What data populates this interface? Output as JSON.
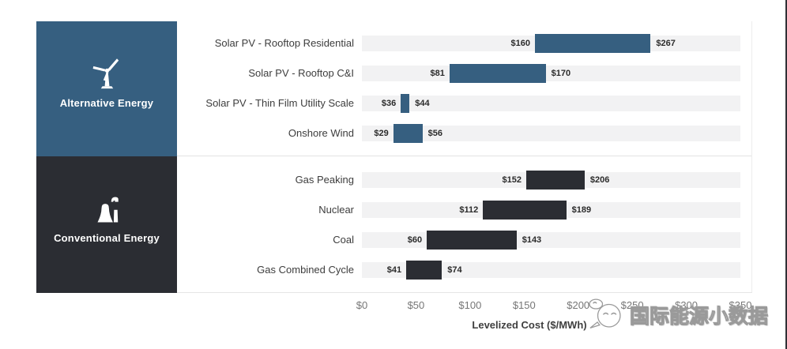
{
  "sidebar": {
    "sections": [
      {
        "label": "Alternative Energy",
        "icon": "wind-turbine-icon",
        "color": "#365f80"
      },
      {
        "label": "Conventional Energy",
        "icon": "power-plant-icon",
        "color": "#2b2d33"
      }
    ]
  },
  "chart_data": {
    "type": "bar",
    "subtype": "horizontal-range-bars",
    "xlabel": "Levelized Cost ($/MWh)",
    "xlim": [
      0,
      350
    ],
    "xticks": [
      "$0",
      "$50",
      "$100",
      "$150",
      "$200",
      "$250",
      "$300",
      "$350"
    ],
    "track_color": "#f2f2f3",
    "grid": false,
    "groups": [
      {
        "name": "Alternative Energy",
        "bar_color": "#365f80",
        "items": [
          {
            "label": "Solar PV - Rooftop Residential",
            "low": 160,
            "high": 267
          },
          {
            "label": "Solar PV - Rooftop C&I",
            "low": 81,
            "high": 170
          },
          {
            "label": "Solar PV - Thin Film Utility Scale",
            "low": 36,
            "high": 44
          },
          {
            "label": "Onshore Wind",
            "low": 29,
            "high": 56
          }
        ]
      },
      {
        "name": "Conventional Energy",
        "bar_color": "#2b2d33",
        "items": [
          {
            "label": "Gas Peaking",
            "low": 152,
            "high": 206
          },
          {
            "label": "Nuclear",
            "low": 112,
            "high": 189
          },
          {
            "label": "Coal",
            "low": 60,
            "high": 143
          },
          {
            "label": "Gas Combined Cycle",
            "low": 41,
            "high": 74
          }
        ]
      }
    ]
  },
  "watermark": {
    "text": "国际能源小数据",
    "logo": "cartoon-face-logo"
  }
}
